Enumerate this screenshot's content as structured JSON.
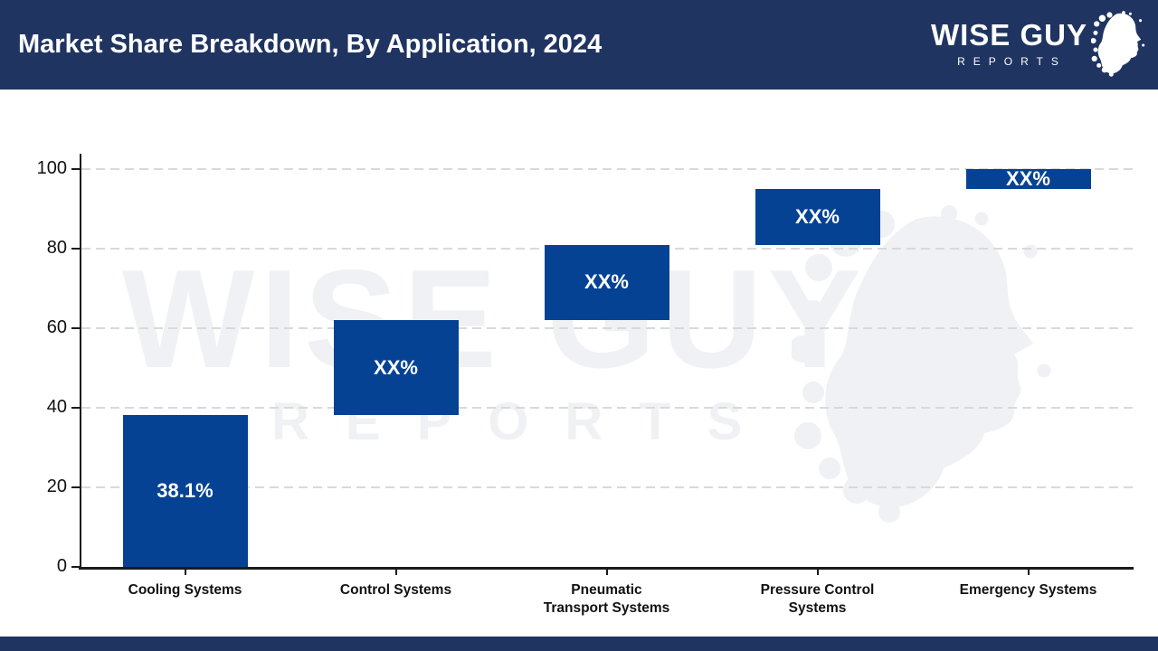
{
  "header": {
    "title": "Market Share Breakdown, By Application, 2024",
    "logo_line1": "WISE GUY",
    "logo_line2": "REPORTS"
  },
  "watermark": {
    "line1": "WISE GUY",
    "line2": "REPORTS"
  },
  "colors": {
    "header_bg": "#1f3461",
    "footer_bg": "#1f3461",
    "bar": "#064294",
    "bar_label": "#ffffff",
    "grid": "#d9d9d9",
    "axis": "#1a1a1a",
    "watermark": "#f0f1f4"
  },
  "chart_data": {
    "type": "bar",
    "variant": "waterfall",
    "title": "Market Share Breakdown, By Application, 2024",
    "categories": [
      "Cooling Systems",
      "Control Systems",
      "Pneumatic\nTransport Systems",
      "Pressure Control\nSystems",
      "Emergency Systems"
    ],
    "series": [
      {
        "name": "Market Share (%)",
        "segments": [
          {
            "start": 0,
            "end": 38.1
          },
          {
            "start": 38.1,
            "end": 62
          },
          {
            "start": 62,
            "end": 81
          },
          {
            "start": 81,
            "end": 95
          },
          {
            "start": 95,
            "end": 100
          }
        ]
      }
    ],
    "bar_labels": [
      "38.1%",
      "XX%",
      "XX%",
      "XX%",
      "XX%"
    ],
    "ylim": [
      0,
      100
    ],
    "yticks": [
      0,
      20,
      40,
      60,
      80,
      100
    ],
    "grid": "horizontal-dashed",
    "legend": false
  }
}
